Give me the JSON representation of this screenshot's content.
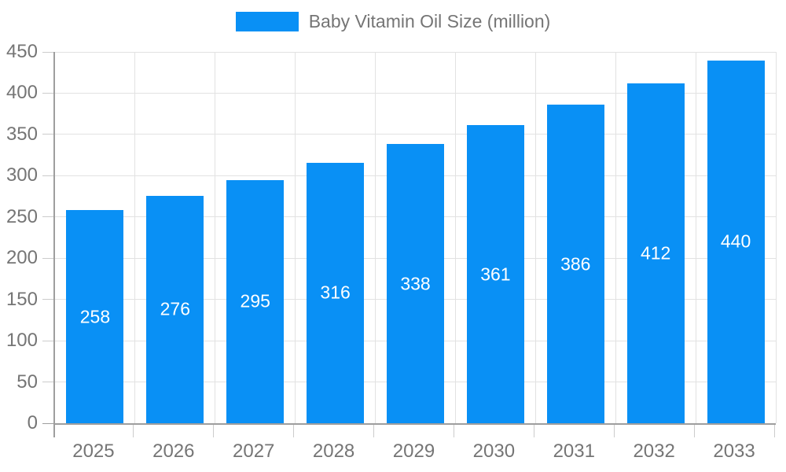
{
  "chart_data": {
    "type": "bar",
    "title": "Baby Vitamin Oil Size (million)",
    "categories": [
      "2025",
      "2026",
      "2027",
      "2028",
      "2029",
      "2030",
      "2031",
      "2032",
      "2033"
    ],
    "values": [
      258,
      276,
      295,
      316,
      338,
      361,
      386,
      412,
      440
    ],
    "xlabel": "",
    "ylabel": "",
    "ylim": [
      0,
      450
    ],
    "ytick_step": 50,
    "yticks": [
      0,
      50,
      100,
      150,
      200,
      250,
      300,
      350,
      400,
      450
    ],
    "grid": true,
    "legend_position": "top-center",
    "value_labels": "inside-middle",
    "colors": {
      "bar": "#0990f5",
      "bar_value_label": "#ffffff",
      "axis_line": "#9e9e9e",
      "gridline": "#e2e2e2",
      "tick": "#cccccc",
      "tick_label": "#757575",
      "legend_text": "#757575",
      "background": "#ffffff"
    }
  },
  "legend": {
    "label": "Baby Vitamin Oil Size (million)"
  }
}
